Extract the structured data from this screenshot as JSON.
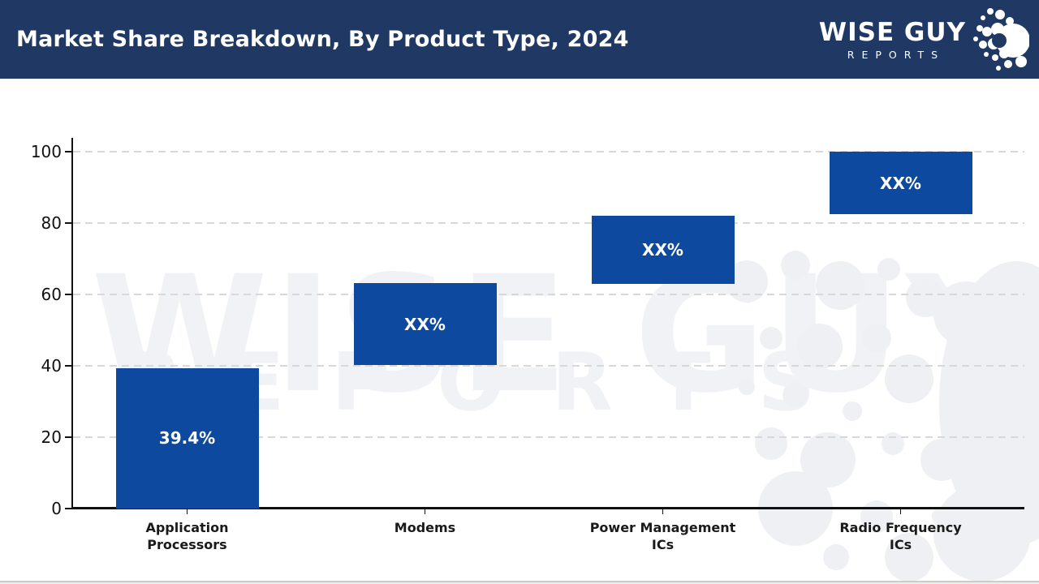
{
  "header": {
    "title": "Market Share Breakdown, By Product Type, 2024",
    "logo": {
      "line1": "WISE GUY",
      "line2": "REPORTS"
    }
  },
  "watermark": {
    "line1": "WISE GUY",
    "line2": "REPORTS"
  },
  "colors": {
    "header_bg": "#203864",
    "bar_fill": "#0d4a9f",
    "bar_label": "#ffffff",
    "grid_line": "#d8d8d8",
    "axis": "#111111",
    "category_label": "#1a1a1a",
    "watermark": "#f1f2f5"
  },
  "chart_data": {
    "type": "bar",
    "variant": "waterfall",
    "title": "Market Share Breakdown, By Product Type, 2024",
    "xlabel": "",
    "ylabel": "",
    "ylim": [
      0,
      100
    ],
    "yticks": [
      0,
      20,
      40,
      60,
      80,
      100
    ],
    "grid": "horizontal-dashed",
    "legend": "none",
    "categories": [
      "Application Processors",
      "Modems",
      "Power Management ICs",
      "Radio Frequency ICs"
    ],
    "category_label_lines": [
      [
        "Application",
        "Processors"
      ],
      [
        "Modems"
      ],
      [
        "Power Management",
        "ICs"
      ],
      [
        "Radio Frequency",
        "ICs"
      ]
    ],
    "segments": [
      {
        "category": "Application Processors",
        "start": 0,
        "end": 39.4,
        "label": "39.4%"
      },
      {
        "category": "Modems",
        "start": 40.2,
        "end": 63.1,
        "label": "XX%"
      },
      {
        "category": "Power Management ICs",
        "start": 63.0,
        "end": 82.0,
        "label": "XX%"
      },
      {
        "category": "Radio Frequency ICs",
        "start": 82.4,
        "end": 100.0,
        "label": "XX%"
      }
    ]
  }
}
